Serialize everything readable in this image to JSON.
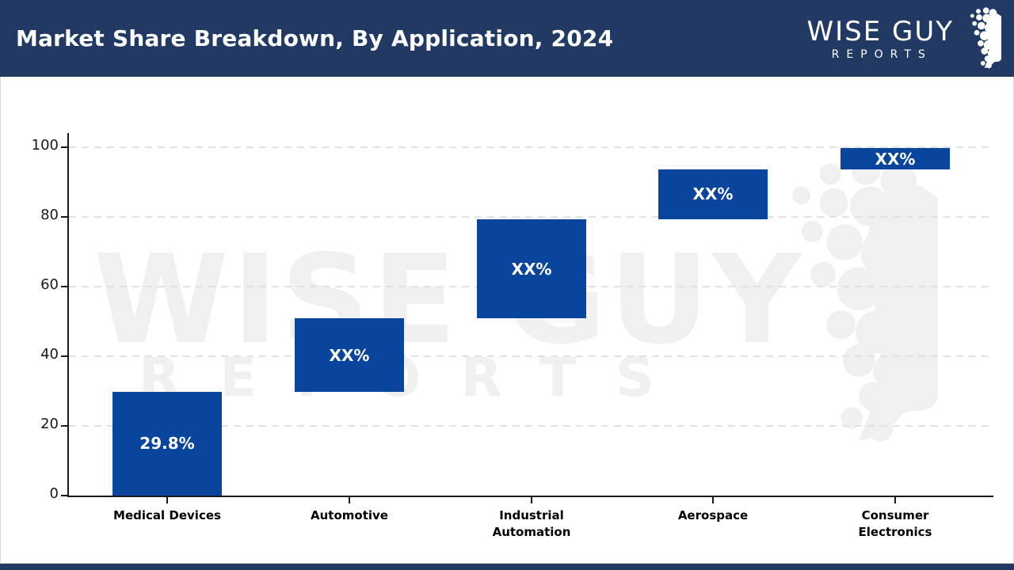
{
  "header": {
    "title": "Market Share Breakdown, By Application, 2024",
    "logo": {
      "line1": "WISE GUY",
      "line2": "REPORTS"
    }
  },
  "watermark": {
    "line1": "WISE GUY",
    "line2": "REPORTS"
  },
  "colors": {
    "header_bg": "#223A63",
    "bar_blue": "#09459D",
    "grid_gray": "#E2E2E2",
    "axis_black": "#1A1A1A",
    "watermark_gray": "#F0F0F0",
    "frame_gray": "#D9D9D9",
    "bar_label_white": "#FFFFFF"
  },
  "chart_data": {
    "type": "bar",
    "variant": "waterfall",
    "title": "Market Share Breakdown, By Application, 2024",
    "xlabel": "",
    "ylabel": "",
    "ylim": [
      0,
      100
    ],
    "yticks": [
      0,
      20,
      40,
      60,
      80,
      100
    ],
    "grid": true,
    "legend": "none",
    "categories": [
      "Medical Devices",
      "Automotive",
      "Industrial Automation",
      "Aerospace",
      "Consumer Electronics"
    ],
    "segments": [
      {
        "category": "Medical Devices",
        "start": 0,
        "end": 29.8,
        "label": "29.8%"
      },
      {
        "category": "Automotive",
        "start": 29.8,
        "end": 50.8,
        "label": "XX%"
      },
      {
        "category": "Industrial Automation",
        "start": 50.8,
        "end": 79.4,
        "label": "XX%"
      },
      {
        "category": "Aerospace",
        "start": 79.4,
        "end": 93.6,
        "label": "XX%"
      },
      {
        "category": "Consumer Electronics",
        "start": 93.6,
        "end": 99.8,
        "label": "XX%"
      }
    ]
  }
}
